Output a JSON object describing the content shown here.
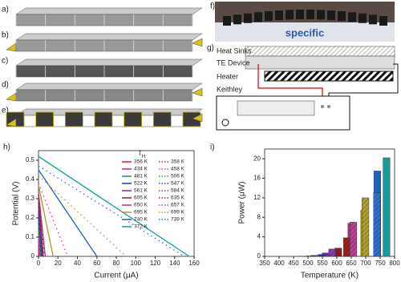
{
  "panels": {
    "a": "a)",
    "b": "b)",
    "c": "c)",
    "d": "d)",
    "e": "e)",
    "f": "f)",
    "g": "g)",
    "h": "h)",
    "i": "i)"
  },
  "photo": {
    "caption": "specific"
  },
  "schematic": {
    "heat_sinks": "Heat Sinks",
    "te_device": "TE Device",
    "heater": "Heater",
    "keithley": "Keithley"
  },
  "chart_data": [
    {
      "type": "line",
      "xlabel": "Current (μA)",
      "ylabel": "Potential (V)",
      "legend_title": "T",
      "legend_title_sub": "H",
      "xlim": [
        0,
        160
      ],
      "xticks": [
        0,
        20,
        40,
        60,
        80,
        100,
        120,
        140,
        160
      ],
      "ylim": [
        0,
        0.55
      ],
      "yticks": [
        0.0,
        0.1,
        0.2,
        0.3,
        0.4,
        0.5
      ],
      "series": [
        {
          "name": "356 K",
          "color": "#e41a1c",
          "dash": false,
          "x": [
            0,
            0.5
          ],
          "values": [
            0.05,
            0
          ]
        },
        {
          "name": "434 K",
          "color": "#c21eb5",
          "dash": false,
          "x": [
            0,
            1
          ],
          "values": [
            0.1,
            0
          ]
        },
        {
          "name": "481 K",
          "color": "#2e8b57",
          "dash": false,
          "x": [
            0,
            2
          ],
          "values": [
            0.15,
            0
          ]
        },
        {
          "name": "522 K",
          "color": "#1f3b99",
          "dash": false,
          "x": [
            0,
            3
          ],
          "values": [
            0.2,
            0
          ]
        },
        {
          "name": "561 K",
          "color": "#7a2a9e",
          "dash": false,
          "x": [
            0,
            4
          ],
          "values": [
            0.25,
            0
          ]
        },
        {
          "name": "605 K",
          "color": "#8b1a1a",
          "dash": false,
          "x": [
            0,
            5
          ],
          "values": [
            0.3,
            0
          ]
        },
        {
          "name": "650 K",
          "color": "#b03080",
          "dash": false,
          "x": [
            0,
            7
          ],
          "values": [
            0.33,
            0
          ]
        },
        {
          "name": "695 K",
          "color": "#a89a1e",
          "dash": false,
          "x": [
            0,
            15
          ],
          "values": [
            0.37,
            0
          ]
        },
        {
          "name": "740 K",
          "color": "#1f5fbf",
          "dash": false,
          "x": [
            0,
            60
          ],
          "values": [
            0.45,
            0
          ]
        },
        {
          "name": "772 K",
          "color": "#1a9a9a",
          "dash": false,
          "x": [
            0,
            155
          ],
          "values": [
            0.52,
            0
          ]
        },
        {
          "name": "358 K",
          "color": "#d62728",
          "dash": true,
          "x": [
            0,
            0.5
          ],
          "values": [
            0.06,
            0
          ]
        },
        {
          "name": "458 K",
          "color": "#e040c0",
          "dash": true,
          "x": [
            0,
            1.5
          ],
          "values": [
            0.12,
            0
          ]
        },
        {
          "name": "506 K",
          "color": "#3a9a3a",
          "dash": true,
          "x": [
            0,
            2.5
          ],
          "values": [
            0.18,
            0
          ]
        },
        {
          "name": "547 K",
          "color": "#2040a0",
          "dash": true,
          "x": [
            0,
            3.5
          ],
          "values": [
            0.22,
            0
          ]
        },
        {
          "name": "584 K",
          "color": "#8040b0",
          "dash": true,
          "x": [
            0,
            5
          ],
          "values": [
            0.27,
            0
          ]
        },
        {
          "name": "635 K",
          "color": "#a02020",
          "dash": true,
          "x": [
            0,
            6
          ],
          "values": [
            0.32,
            0
          ]
        },
        {
          "name": "657 K",
          "color": "#c04090",
          "dash": true,
          "x": [
            0,
            30
          ],
          "values": [
            0.38,
            0
          ]
        },
        {
          "name": "699 K",
          "color": "#b0a030",
          "dash": true,
          "x": [
            0,
            90
          ],
          "values": [
            0.42,
            0
          ]
        },
        {
          "name": "739 K",
          "color": "#3070d0",
          "dash": true,
          "x": [
            0,
            150
          ],
          "values": [
            0.47,
            0
          ]
        }
      ]
    },
    {
      "type": "bar",
      "xlabel": "Temperature (K)",
      "ylabel": "Power (μW)",
      "xlim": [
        350,
        800
      ],
      "xticks": [
        350,
        400,
        450,
        500,
        550,
        600,
        650,
        700,
        750,
        800
      ],
      "ylim": [
        0,
        22
      ],
      "yticks": [
        0,
        4,
        8,
        12,
        16,
        20
      ],
      "series": [
        {
          "hatch": false,
          "x": [
            481,
            522,
            561,
            605,
            650,
            695,
            740,
            772
          ],
          "values": [
            0.05,
            0.2,
            0.7,
            1.7,
            6.8,
            9.5,
            17.5,
            20.2
          ],
          "colors": [
            "#2e8b57",
            "#1f3b99",
            "#7a2a9e",
            "#8b1a1a",
            "#b03080",
            "#a89a1e",
            "#1f5fbf",
            "#1a9a9a"
          ]
        },
        {
          "hatch": true,
          "x": [
            506,
            547,
            584,
            635,
            657,
            699,
            739
          ],
          "values": [
            0.1,
            0.4,
            1.5,
            3.8,
            7,
            12,
            13
          ],
          "colors": [
            "#3a9a3a",
            "#2040a0",
            "#8040b0",
            "#a02020",
            "#c04090",
            "#b0a030",
            "#3070d0"
          ]
        }
      ]
    }
  ]
}
